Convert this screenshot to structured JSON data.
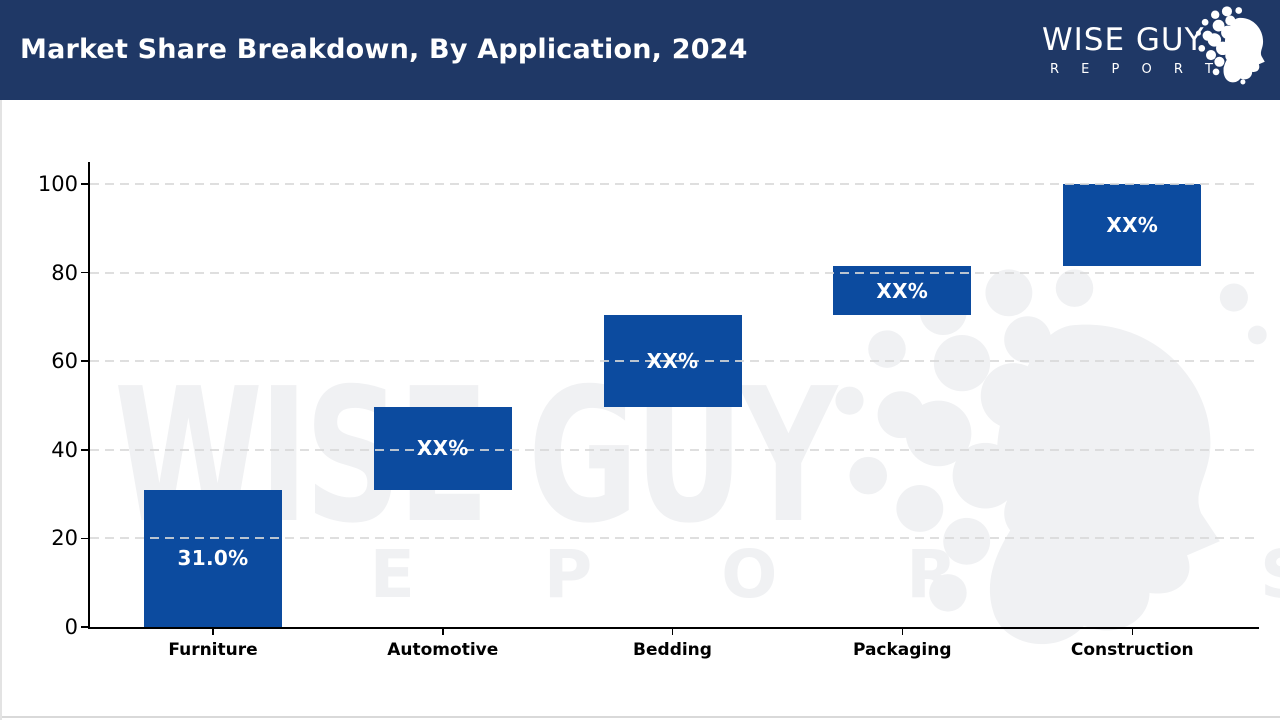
{
  "header": {
    "title": "Market Share Breakdown, By Application, 2024",
    "logo": {
      "brand": "WISE GUY",
      "sub": "R E P O R T S",
      "icon": "dotted-head-profile"
    }
  },
  "watermark": {
    "brand": "WISE GUY",
    "sub": "R E P O R T S",
    "icon": "dotted-head-profile"
  },
  "chart_data": {
    "type": "bar",
    "subtype": "waterfall",
    "title": "Market Share Breakdown, By Application, 2024",
    "categories": [
      "Furniture",
      "Automotive",
      "Bedding",
      "Packaging",
      "Construction"
    ],
    "segments": [
      {
        "category": "Furniture",
        "start": 0,
        "end": 31.0,
        "label": "31.0%"
      },
      {
        "category": "Automotive",
        "start": 31.0,
        "end": 49.6,
        "label": "XX%"
      },
      {
        "category": "Bedding",
        "start": 49.6,
        "end": 70.4,
        "label": "XX%"
      },
      {
        "category": "Packaging",
        "start": 70.4,
        "end": 81.5,
        "label": "XX%"
      },
      {
        "category": "Construction",
        "start": 81.5,
        "end": 100.0,
        "label": "XX%"
      }
    ],
    "yticks": [
      0,
      20,
      40,
      60,
      80,
      100
    ],
    "ytick_labels": [
      "0",
      "20",
      "40",
      "60",
      "80",
      "100"
    ],
    "ylim": [
      0,
      105
    ],
    "xlabel": "",
    "ylabel": "",
    "grid": "horizontal-dashed",
    "legend": "none",
    "bar_color": "#0C4B9F",
    "bar_label_color": "#FFFFFF"
  },
  "colors": {
    "header_bg": "#1F3866",
    "bar": "#0C4B9F",
    "grid": "#D9D9D9",
    "axis": "#000000",
    "watermark": "#F0F1F3"
  }
}
